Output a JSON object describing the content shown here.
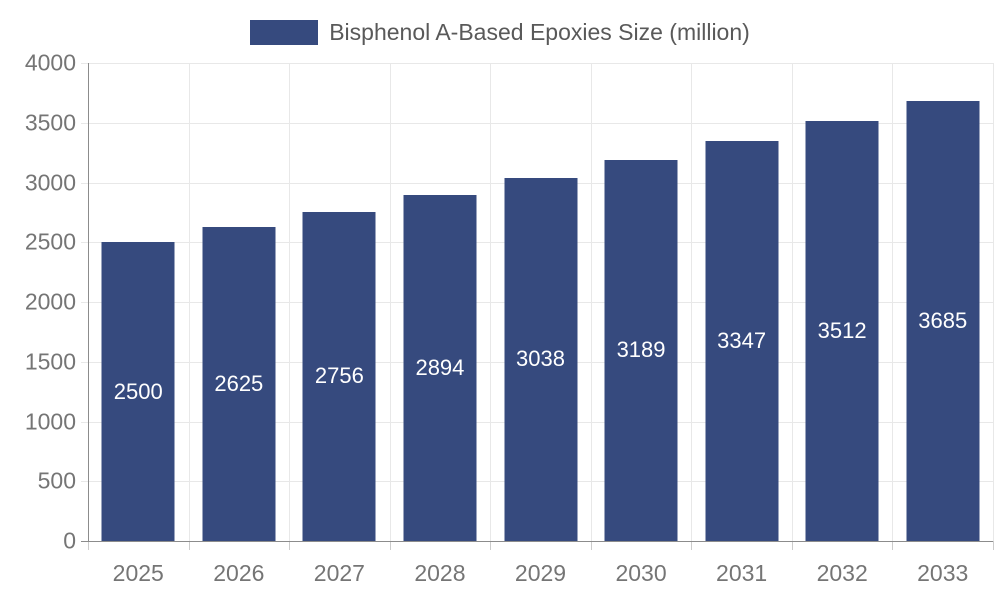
{
  "chart_data": {
    "type": "bar",
    "title": "Bisphenol A-Based Epoxies Size (million)",
    "legend": {
      "label": "Bisphenol A-Based Epoxies Size (million)",
      "position": "top"
    },
    "categories": [
      "2025",
      "2026",
      "2027",
      "2028",
      "2029",
      "2030",
      "2031",
      "2032",
      "2033"
    ],
    "values": [
      2500,
      2625,
      2756,
      2894,
      3038,
      3189,
      3347,
      3512,
      3685
    ],
    "value_labels_inside_bars": true,
    "xlabel": "",
    "ylabel": "",
    "ylim": [
      0,
      4000
    ],
    "ytick_step": 500,
    "yticks": [
      0,
      500,
      1000,
      1500,
      2000,
      2500,
      3000,
      3500,
      4000
    ],
    "grid": true,
    "bar_band_fraction": 0.726,
    "colors": {
      "bar": "#364A7E",
      "grid": "#e8e8e8",
      "axis_line": "#8c8c8c",
      "tick": "#cccccc",
      "axis_text": "#757575",
      "legend_text": "#595959",
      "value_label": "#ffffff",
      "background": "#ffffff"
    }
  }
}
